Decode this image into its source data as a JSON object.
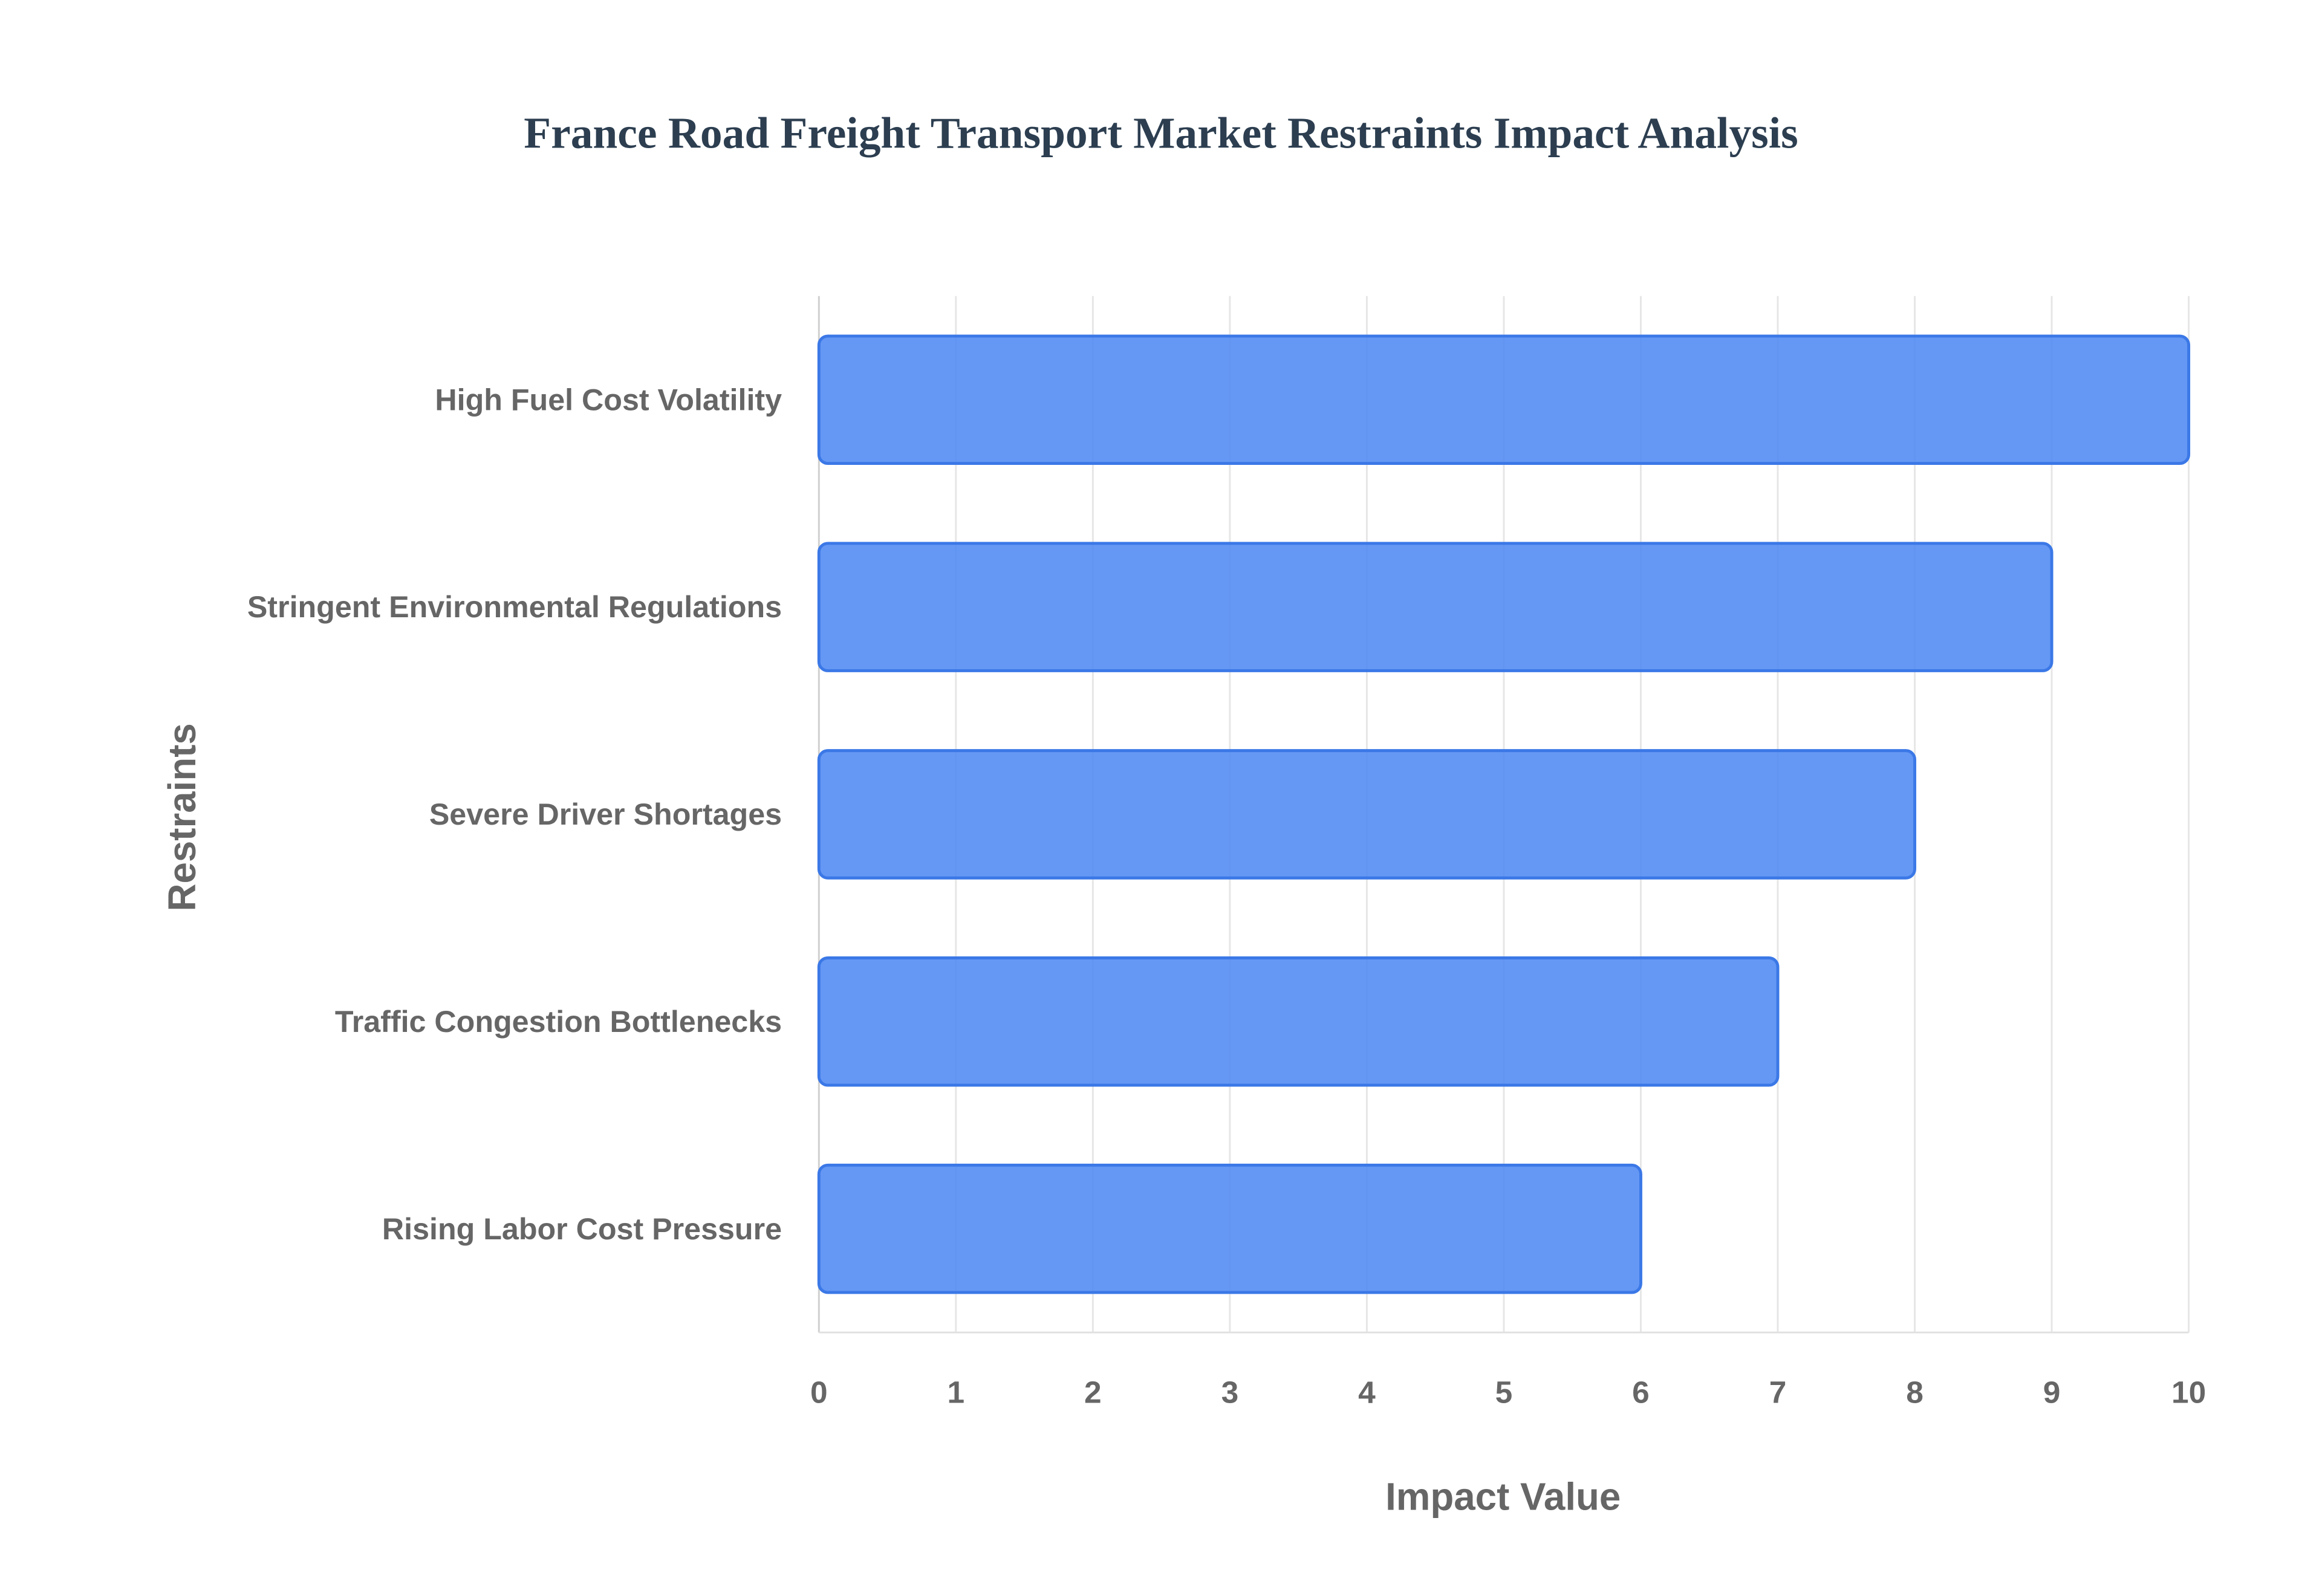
{
  "chart_data": {
    "type": "hbar",
    "title": "France Road Freight Transport Market Restraints Impact Analysis",
    "x_label": "Impact Value",
    "y_label": "Restraints",
    "categories": [
      "High Fuel Cost Volatility",
      "Stringent Environmental Regulations",
      "Severe Driver Shortages",
      "Traffic Congestion Bottlenecks",
      "Rising Labor Cost Pressure"
    ],
    "values": [
      10,
      9,
      8,
      7,
      6
    ],
    "color": "#4a86f2",
    "xlim": [
      0,
      10
    ],
    "xticks": [
      0,
      1,
      2,
      3,
      4,
      5,
      6,
      7,
      8,
      9,
      10
    ],
    "grid": true
  }
}
